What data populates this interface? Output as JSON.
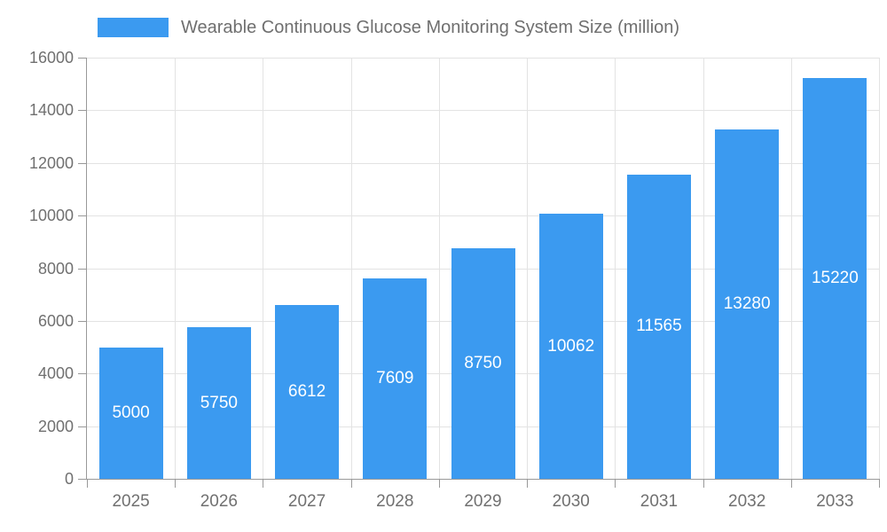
{
  "chart_data": {
    "type": "bar",
    "title": "Wearable Continuous Glucose Monitoring System Size (million)",
    "categories": [
      "2025",
      "2026",
      "2027",
      "2028",
      "2029",
      "2030",
      "2031",
      "2032",
      "2033"
    ],
    "values": [
      5000,
      5750,
      6612,
      7609,
      8750,
      10062,
      11565,
      13280,
      15220
    ],
    "value_labels": [
      "5000",
      "5750",
      "6612",
      "7609",
      "8750",
      "10062",
      "11565",
      "13280",
      "15220"
    ],
    "xlabel": "",
    "ylabel": "",
    "ylim": [
      0,
      16000
    ],
    "yticks": [
      0,
      2000,
      4000,
      6000,
      8000,
      10000,
      12000,
      14000,
      16000
    ],
    "ytick_labels": [
      "0",
      "2000",
      "4000",
      "6000",
      "8000",
      "10000",
      "12000",
      "14000",
      "16000"
    ],
    "grid": true,
    "legend_position": "top-left",
    "colors": {
      "bar": "#3B9AF0",
      "bar_label": "#FFFFFF",
      "axis_line": "#999999",
      "grid_line": "#E3E3E3",
      "tick_text": "#707070",
      "legend_text": "#6F6F6F",
      "background": "#FFFFFF"
    }
  }
}
